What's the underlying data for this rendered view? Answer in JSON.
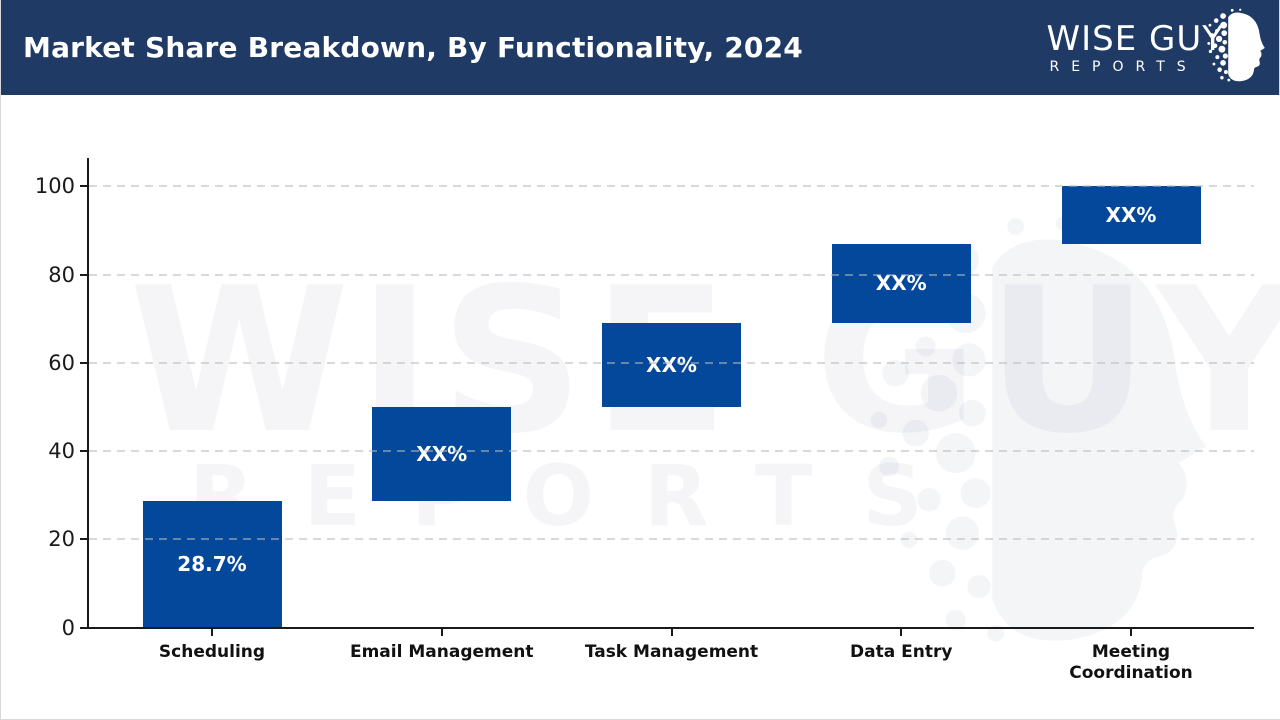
{
  "header": {
    "title": "Market Share Breakdown, By Functionality, 2024",
    "bg_color": "#1f3a64",
    "brand": {
      "line1": "WISE GUY",
      "line2": "REPORTS"
    }
  },
  "watermark": {
    "line1": "WISE GUY",
    "line2": "REPORTS"
  },
  "chart_data": {
    "type": "bar",
    "subtype": "waterfall",
    "title": "Market Share Breakdown, By Functionality, 2024",
    "categories": [
      "Scheduling",
      "Email Management",
      "Task Management",
      "Data Entry",
      "Meeting Coordination"
    ],
    "segments": [
      {
        "start": 0,
        "end": 28.7,
        "label": "28.7%"
      },
      {
        "start": 28.7,
        "end": 50,
        "label": "XX%"
      },
      {
        "start": 50,
        "end": 69,
        "label": "XX%"
      },
      {
        "start": 69,
        "end": 87,
        "label": "XX%"
      },
      {
        "start": 87,
        "end": 100,
        "label": "XX%"
      }
    ],
    "bar_labels": [
      "28.7%",
      "XX%",
      "XX%",
      "XX%",
      "XX%"
    ],
    "yticks": [
      0,
      20,
      40,
      60,
      80,
      100
    ],
    "ylim": [
      0,
      105
    ],
    "xlabel": "",
    "ylabel": "",
    "bar_color": "#04489c",
    "grid": "horizontal-dashed",
    "gridline_color": "#dcdcdc",
    "legend": "none"
  }
}
